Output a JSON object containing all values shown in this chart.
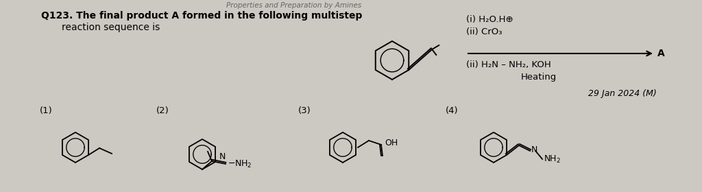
{
  "bg_color": "#ccc8c2",
  "title_line1": "Q123. The final product A formed in the following multistep",
  "title_line2": "reaction sequence is",
  "reagent_line1": "(i) H₂O.H⊕",
  "reagent_line2": "(ii) CrO₃",
  "reagent_line3": "(ii) H₂N – NH₂, KOH",
  "reagent_line4": "Heating",
  "arrow_label": "A",
  "date_label": "29 Jan 2024 (M)",
  "option1": "(1)",
  "option2": "(2)",
  "option3": "(3)",
  "option4": "(4)",
  "header_text": "Properties and Preparation by Amines"
}
